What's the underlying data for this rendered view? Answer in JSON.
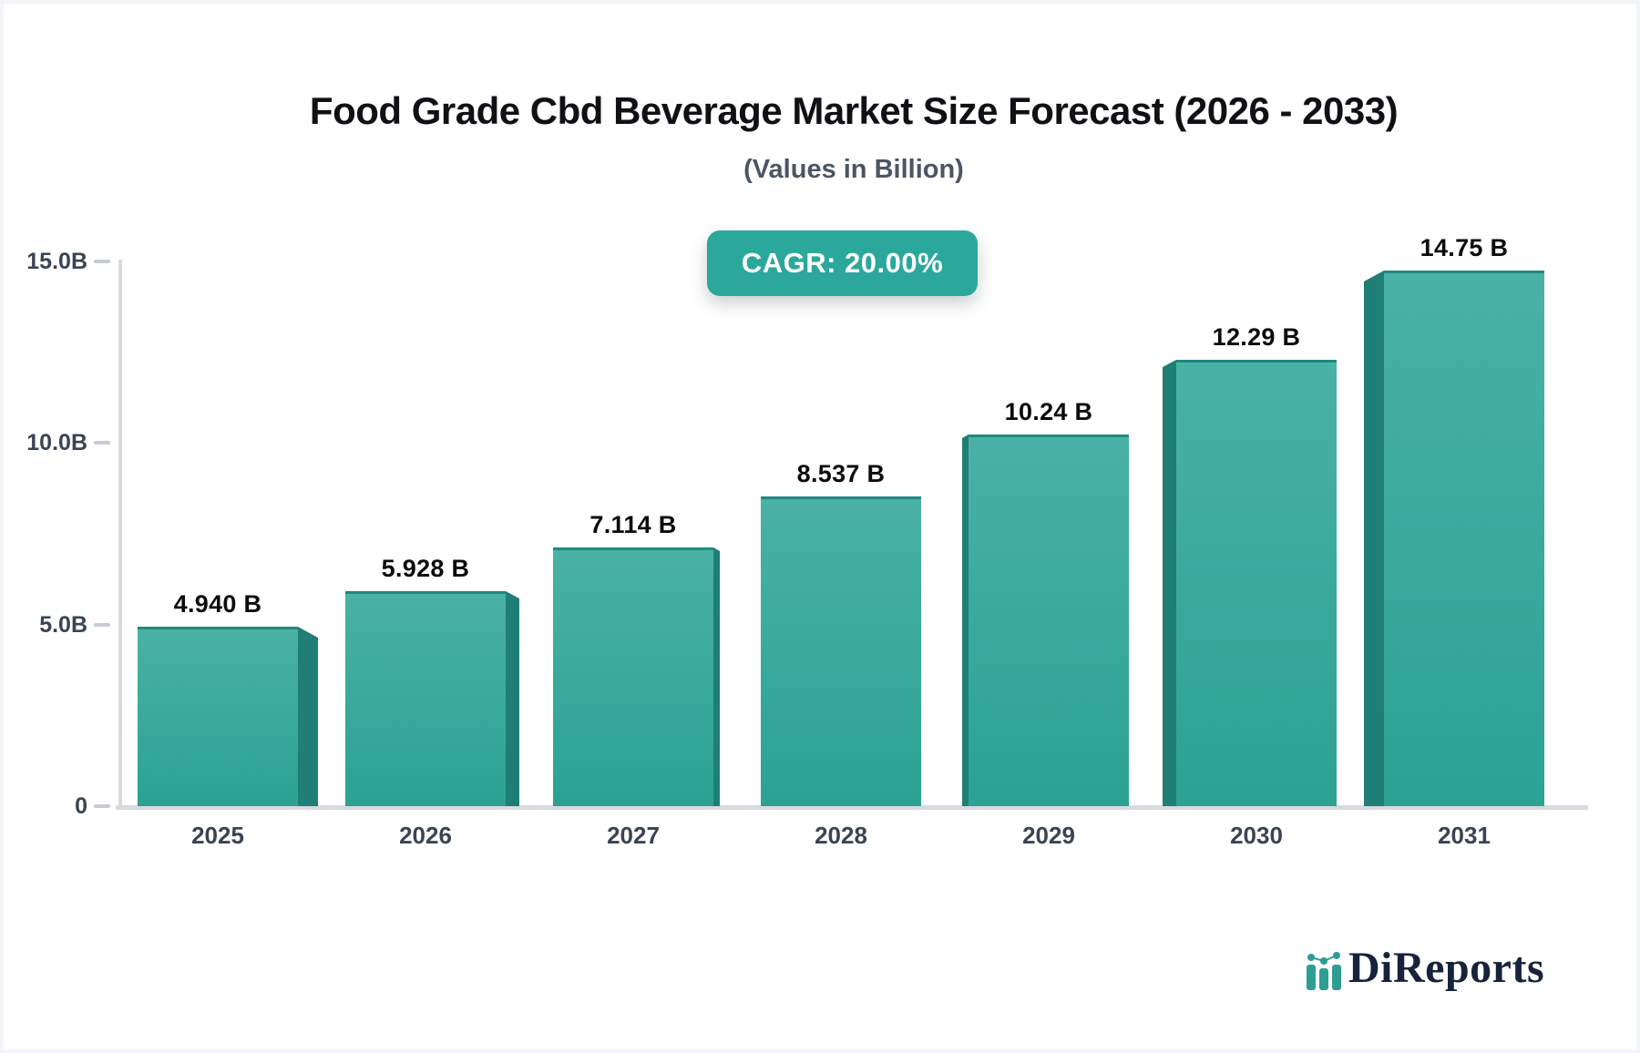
{
  "header": {
    "title": "Food Grade Cbd Beverage Market Size Forecast (2026 - 2033)",
    "subtitle": "(Values in Billion)"
  },
  "badge": {
    "label": "CAGR: 20.00%",
    "color": "#2BA89B"
  },
  "chart_data": {
    "type": "bar",
    "title": "Food Grade Cbd Beverage Market Size Forecast (2026 - 2033)",
    "subtitle": "(Values in Billion)",
    "cagr_percent": "20.00%",
    "categories": [
      "2025",
      "2026",
      "2027",
      "2028",
      "2029",
      "2030",
      "2031"
    ],
    "values": [
      4.94,
      5.928,
      7.114,
      8.537,
      10.24,
      12.29,
      14.75
    ],
    "value_labels": [
      "4.940 B",
      "5.928 B",
      "7.114 B",
      "8.537 B",
      "10.24 B",
      "12.29 B",
      "14.75 B"
    ],
    "unit": "Billion",
    "ylim": [
      0,
      15
    ],
    "yticks": [
      {
        "value": 0,
        "label": "0"
      },
      {
        "value": 5,
        "label": "5.0B"
      },
      {
        "value": 10,
        "label": "10.0B"
      },
      {
        "value": 15,
        "label": "15.0B"
      }
    ],
    "grid": false,
    "legend": "none",
    "colors": {
      "bar_face_top": "#4ab1a6",
      "bar_face_bottom": "#2ba294",
      "bar_face_edge": "#1f8a80",
      "bar_side": "#1f7e75",
      "axis": "#d7dade",
      "tick": "#c7ccd3",
      "axis_label": "#3a4453",
      "value_label": "#0b0b0d"
    }
  },
  "logo": {
    "text": "DiReports",
    "icon": "mini-bar-line-chart-icon"
  }
}
